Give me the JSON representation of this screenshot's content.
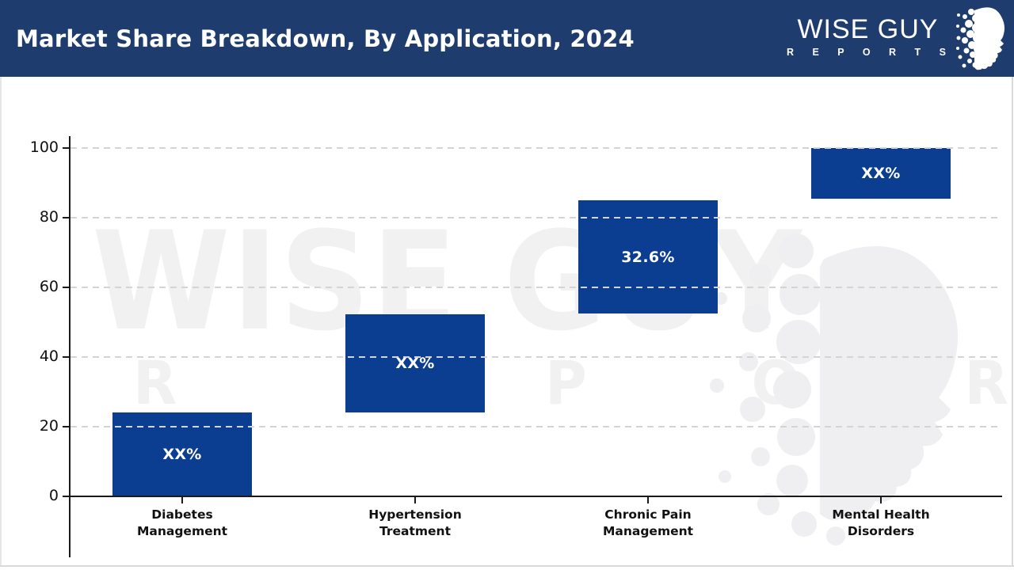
{
  "header": {
    "title": "Market Share Breakdown, By Application, 2024",
    "brand_line1": "WISE GUY",
    "brand_line2": "R E P O R T S"
  },
  "watermark": {
    "line1": "WISE GUY",
    "line2": "R E P O R T S"
  },
  "chart_data": {
    "type": "bar",
    "subtype": "waterfall-floating-bars",
    "title": "Market Share Breakdown, By Application, 2024",
    "xlabel": "",
    "ylabel": "",
    "ylim": [
      0,
      100
    ],
    "yticks": [
      0,
      20,
      40,
      60,
      80,
      100
    ],
    "grid": "horizontal dashed, drawn over bars",
    "legend": "none",
    "bar_color": "#0b3d91",
    "label_color": "#ffffff",
    "segments": [
      {
        "category": "Diabetes Management",
        "lines": [
          "Diabetes",
          "Management"
        ],
        "start": 0,
        "end": 24.1,
        "label": "XX%"
      },
      {
        "category": "Hypertension Treatment",
        "lines": [
          "Hypertension",
          "Treatment"
        ],
        "start": 24.1,
        "end": 52.3,
        "label": "XX%"
      },
      {
        "category": "Chronic Pain Management",
        "lines": [
          "Chronic Pain",
          "Management"
        ],
        "start": 52.4,
        "end": 85.0,
        "label": "32.6%"
      },
      {
        "category": "Mental Health Disorders",
        "lines": [
          "Mental Health",
          "Disorders"
        ],
        "start": 85.5,
        "end": 100,
        "label": "XX%"
      }
    ]
  },
  "colors": {
    "header_bg": "#1e3c6e",
    "bar": "#0b3d91",
    "grid": "#d4d4d4",
    "axis": "#1a1a1a",
    "watermark": "#f1f1f2",
    "plot_bg": "#ffffff"
  }
}
